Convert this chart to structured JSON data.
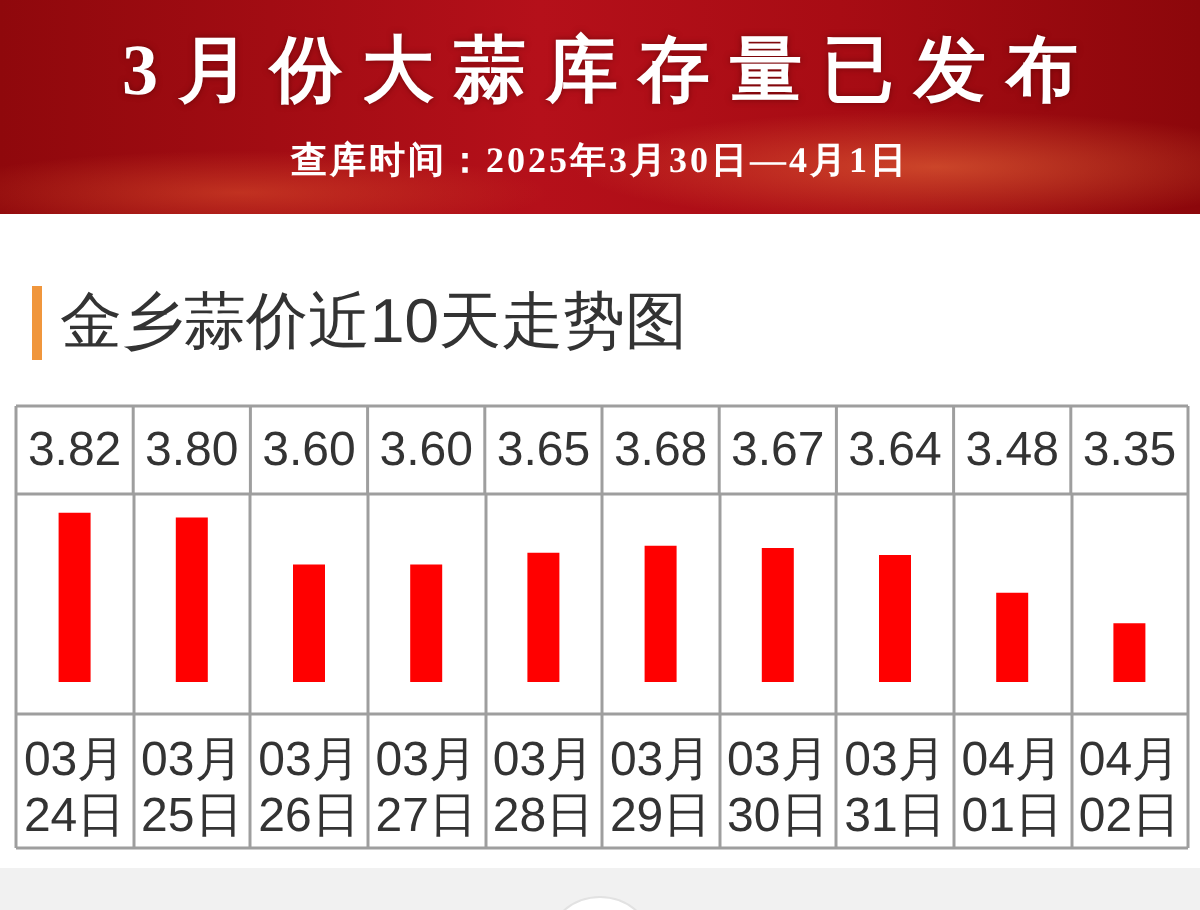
{
  "chart_data": {
    "type": "bar",
    "title": "金乡蒜价近10天走势图",
    "annotations": [
      "3月份大蒜库存量已发布",
      "查库时间：2025年3月30日—4月1日"
    ],
    "categories": [
      "03月24日",
      "03月25日",
      "03月26日",
      "03月27日",
      "03月28日",
      "03月29日",
      "03月30日",
      "03月31日",
      "04月01日",
      "04月02日"
    ],
    "values": [
      3.82,
      3.8,
      3.6,
      3.6,
      3.65,
      3.68,
      3.67,
      3.64,
      3.48,
      3.35
    ],
    "value_labels": [
      "3.82",
      "3.80",
      "3.60",
      "3.60",
      "3.65",
      "3.68",
      "3.67",
      "3.64",
      "3.48",
      "3.35"
    ],
    "color": "#ff0000",
    "ylim": [
      3.1,
      3.9
    ],
    "tick_labels": "x",
    "grid": "x"
  }
}
